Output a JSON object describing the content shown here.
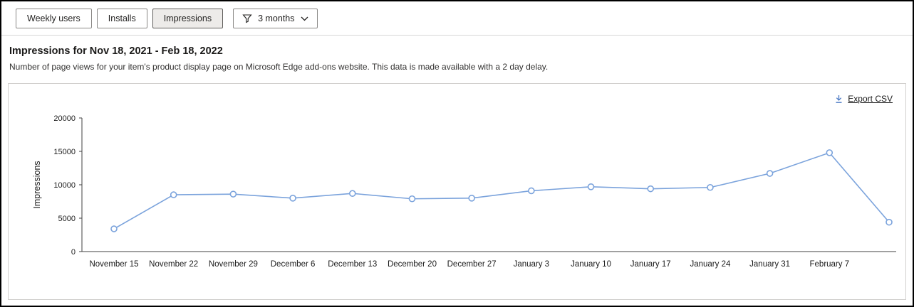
{
  "toolbar": {
    "tabs": [
      {
        "label": "Weekly users",
        "selected": false
      },
      {
        "label": "Installs",
        "selected": false
      },
      {
        "label": "Impressions",
        "selected": true
      }
    ],
    "filter": {
      "label": "3 months"
    }
  },
  "header": {
    "title": "Impressions for Nov 18, 2021 - Feb 18, 2022",
    "subtitle": "Number of page views for your item's product display page on Microsoft Edge add-ons website. This data is made available with a 2 day delay."
  },
  "panel": {
    "export_label": "Export CSV"
  },
  "colors": {
    "line": "#7ba3dc",
    "axis": "#424242",
    "download_icon": "#4a79c4",
    "selected_tab_bg": "#edebe9"
  },
  "chart_data": {
    "type": "line",
    "categories": [
      "November 15",
      "November 22",
      "November 29",
      "December 6",
      "December 13",
      "December 20",
      "December 27",
      "January 3",
      "January 10",
      "January 17",
      "January 24",
      "January 31",
      "February 7",
      ""
    ],
    "values": [
      3400,
      8500,
      8600,
      8000,
      8700,
      7900,
      8000,
      9100,
      9700,
      9400,
      9600,
      11700,
      14800,
      4400
    ],
    "title": "",
    "xlabel": "",
    "ylabel": "Impressions",
    "ylim": [
      0,
      20000
    ],
    "yticks": [
      0,
      5000,
      10000,
      15000,
      20000
    ],
    "line_color": "#7ba3dc",
    "marker": "open-circle",
    "grid": false,
    "legend": "none"
  }
}
